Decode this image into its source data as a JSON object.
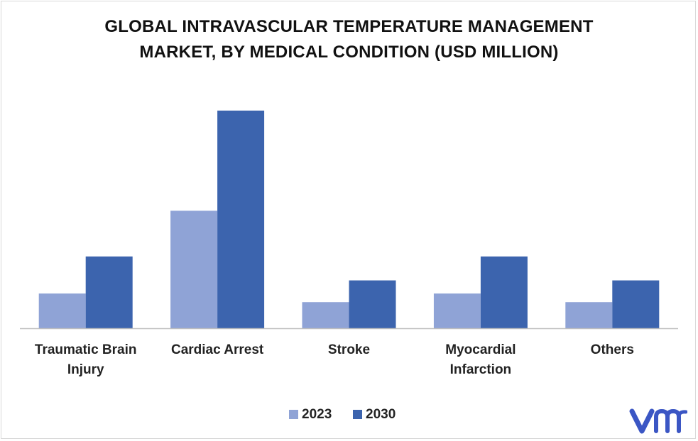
{
  "chart_data": {
    "type": "bar",
    "title_lines": [
      "GLOBAL INTRAVASCULAR TEMPERATURE MANAGEMENT",
      "MARKET, BY MEDICAL CONDITION (USD MILLION)"
    ],
    "categories": [
      [
        "Traumatic Brain",
        "Injury"
      ],
      [
        "Cardiac Arrest"
      ],
      [
        "Stroke"
      ],
      [
        "Myocardial",
        "Infarction"
      ],
      [
        "Others"
      ]
    ],
    "series": [
      {
        "name": "2023",
        "color": "#8fa3d6",
        "values": [
          16,
          54,
          12,
          16,
          12
        ]
      },
      {
        "name": "2030",
        "color": "#3c64ae",
        "values": [
          33,
          100,
          22,
          33,
          22
        ]
      }
    ],
    "ylim": [
      0,
      100
    ],
    "grid": false,
    "legend_position": "bottom-center"
  },
  "logo": {
    "icon": "vmr-logo-icon",
    "color": "#3b56c4"
  }
}
